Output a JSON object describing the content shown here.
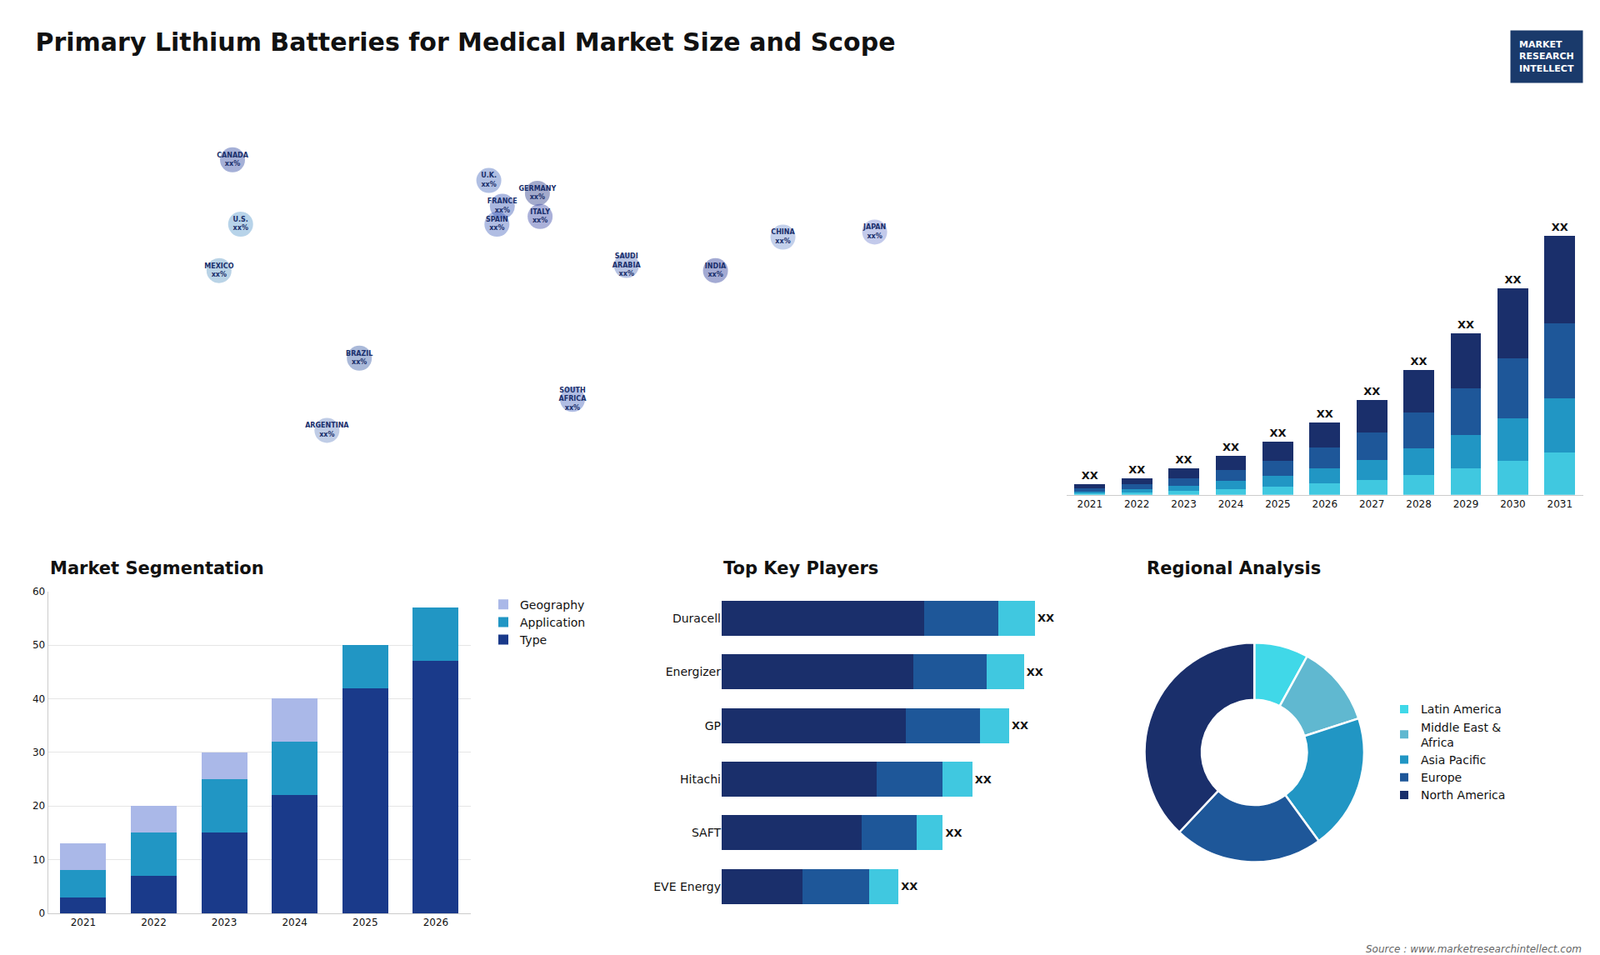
{
  "title": "Primary Lithium Batteries for Medical Market Size and Scope",
  "annotations": [
    "Source : www.marketresearchintellect.com",
    "MARKET\nRESEARCH\nINTELLECT"
  ],
  "chart_data": [
    {
      "type": "scatter",
      "x": [
        -100,
        -97,
        -105,
        -53,
        -65,
        -5,
        0,
        13,
        -2,
        14,
        26,
        46,
        104,
        79,
        138
      ],
      "values": [
        65,
        40,
        22,
        -12,
        -40,
        57,
        47,
        52,
        40,
        43,
        -28,
        24,
        35,
        22,
        37
      ],
      "annotations": [
        "CANADA\nxx%",
        "U.S.\nxx%",
        "MEXICO\nxx%",
        "BRAZIL\nxx%",
        "ARGENTINA\nxx%",
        "U.K.\nxx%",
        "FRANCE\nxx%",
        "GERMANY\nxx%",
        "SPAIN\nxx%",
        "ITALY\nxx%",
        "SOUTH\nAFRICA\nxx%",
        "SAUDI\nARABIA\nxx%",
        "CHINA\nxx%",
        "INDIA\nxx%",
        "JAPAN\nxx%"
      ],
      "colors": [
        "#1e3a9a",
        "#4a90c8",
        "#5090c0",
        "#2a50a0",
        "#6080c0",
        "#3a60b8",
        "#2a4ab0",
        "#1a2a80",
        "#3a5ab8",
        "#2a3aa0",
        "#3a5ab8",
        "#4a6ab8",
        "#6a8acc",
        "#1a2a90",
        "#6a7acc"
      ],
      "color": "#1a2f6b",
      "xlim": [
        -180,
        180
      ],
      "ylim": [
        -65,
        85
      ],
      "tick_labels": false,
      "grid": false
    },
    {
      "type": "bar",
      "categories": [
        "2021",
        "2022",
        "2023",
        "2024",
        "2025",
        "2026",
        "2027",
        "2028",
        "2029",
        "2030",
        "2031"
      ],
      "series": [
        {
          "color": "#40c8e0",
          "values": [
            0.5,
            0.9,
            1.5,
            2.2,
            3.2,
            4.5,
            6.0,
            8.0,
            10.5,
            13.5,
            17.0
          ]
        },
        {
          "color": "#2196c4",
          "values": [
            0.8,
            1.3,
            2.2,
            3.2,
            4.5,
            6.0,
            8.0,
            10.5,
            13.5,
            17.0,
            21.5
          ]
        },
        {
          "color": "#1e5799",
          "values": [
            1.2,
            2.0,
            3.0,
            4.5,
            6.0,
            8.5,
            11.0,
            14.5,
            18.5,
            24.0,
            30.0
          ]
        },
        {
          "color": "#1a2f6b",
          "values": [
            1.8,
            2.5,
            4.0,
            5.5,
            7.5,
            10.0,
            13.0,
            17.0,
            22.0,
            28.0,
            35.0
          ]
        }
      ],
      "annotations": [
        "XX",
        "XX",
        "XX",
        "XX",
        "XX",
        "XX",
        "XX",
        "XX",
        "XX",
        "XX",
        "XX"
      ],
      "ylim": [
        0,
        144.9
      ],
      "stacked": true,
      "tick_labels": "x",
      "grid": false
    },
    {
      "type": "bar",
      "title": "Market Segmentation",
      "categories": [
        "2021",
        "2022",
        "2023",
        "2024",
        "2025",
        "2026"
      ],
      "series": [
        {
          "name": "Type",
          "color": "#1a3a8a",
          "values": [
            3,
            7,
            15,
            22,
            42,
            47
          ]
        },
        {
          "name": "Application",
          "color": "#2196c4",
          "values": [
            5,
            8,
            10,
            10,
            8,
            10
          ]
        },
        {
          "name": "Geography",
          "color": "#aab8e8",
          "values": [
            5,
            5,
            5,
            8,
            0,
            0
          ]
        }
      ],
      "ylim": [
        0,
        60
      ],
      "yticks": [
        0,
        10,
        20,
        30,
        40,
        50,
        60
      ],
      "stacked": true,
      "grid": true,
      "legend": "right"
    },
    {
      "type": "bar",
      "title": "Top Key Players",
      "orientation": "horizontal",
      "categories": [
        "Duracell",
        "Energizer",
        "GP",
        "Hitachi",
        "SAFT",
        "EVE Energy"
      ],
      "series": [
        {
          "color": "#1a2f6b",
          "values": [
            55,
            52,
            50,
            42,
            38,
            22
          ]
        },
        {
          "color": "#1e5799",
          "values": [
            20,
            20,
            20,
            18,
            15,
            18
          ]
        },
        {
          "color": "#40c8e0",
          "values": [
            10,
            10,
            8,
            8,
            7,
            8
          ]
        }
      ],
      "annotations": [
        "XX",
        "XX",
        "XX",
        "XX",
        "XX",
        "XX"
      ],
      "xlim": [
        0,
        89.25
      ],
      "stacked": true,
      "tick_labels": "y",
      "grid": false
    },
    {
      "type": "donut",
      "title": "Regional Analysis",
      "categories": [
        "Latin America",
        "Middle East &\nAfrica",
        "Asia Pacific",
        "Europe",
        "North America"
      ],
      "values": [
        8,
        12,
        20,
        22,
        38
      ],
      "colors": [
        "#40d8e8",
        "#60b8d0",
        "#2196c4",
        "#1e5799",
        "#1a2f6b"
      ],
      "legend": "right"
    }
  ]
}
